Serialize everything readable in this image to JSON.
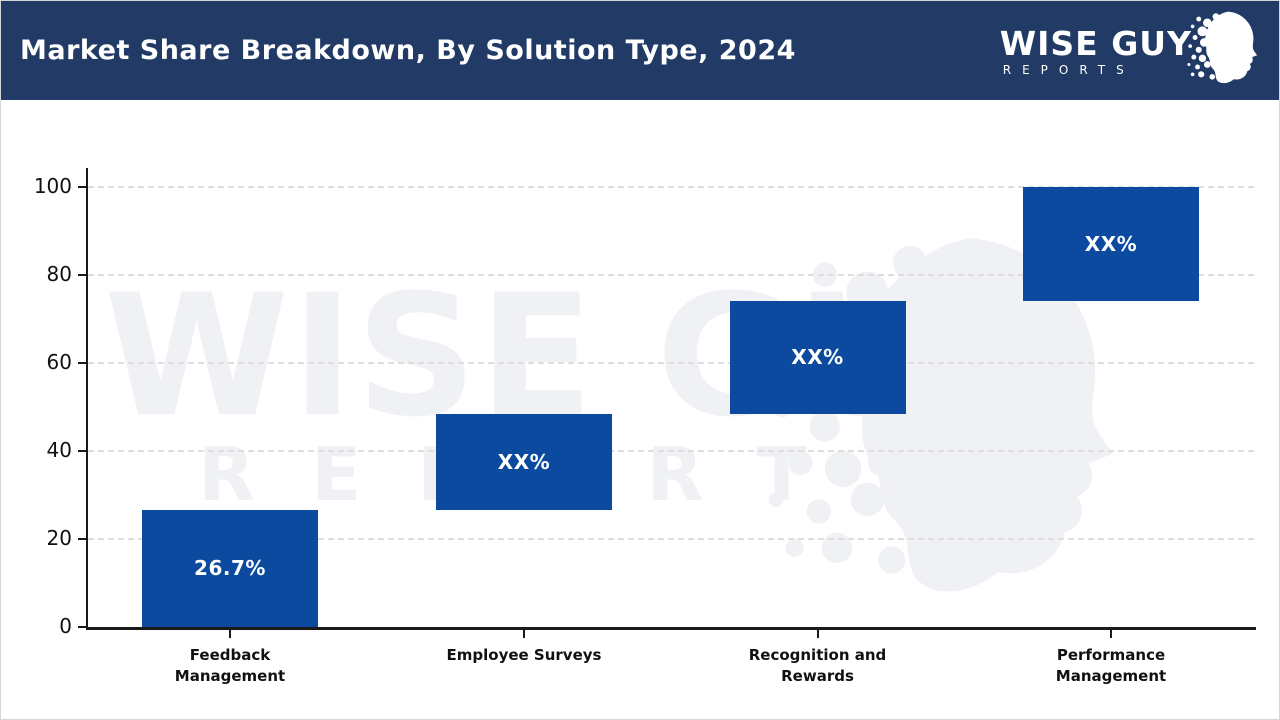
{
  "header": {
    "title": "Market Share Breakdown, By Solution Type, 2024",
    "logo": {
      "brand_line1": "WISE GUY",
      "brand_line2": "REPORTS"
    }
  },
  "watermark": {
    "line1": "WISE GU",
    "line2": "REPORTS"
  },
  "colors": {
    "header_bg": "#213a66",
    "bar": "#0b4a9f",
    "watermark": "#eff1f4",
    "grid": "#dedede",
    "axis": "#1a1a1a",
    "bar_label": "#ffffff"
  },
  "chart_data": {
    "type": "bar",
    "subtype": "waterfall-stacked-segments",
    "title": "Market Share Breakdown, By Solution Type, 2024",
    "xlabel": "",
    "ylabel": "",
    "ylim": [
      0,
      100
    ],
    "yticks": [
      0,
      20,
      40,
      60,
      80,
      100
    ],
    "grid": "horizontal-dashed",
    "legend": "none",
    "categories": [
      "Feedback Management",
      "Employee Surveys",
      "Recognition and Rewards",
      "Performance Management"
    ],
    "category_display": [
      "Feedback\nManagement",
      "Employee Surveys",
      "Recognition and\nRewards",
      "Performance\nManagement"
    ],
    "segments": [
      {
        "category": "Feedback Management",
        "label": "26.7%",
        "start": 0,
        "end": 26.7
      },
      {
        "category": "Employee Surveys",
        "label": "XX%",
        "start": 26.7,
        "end": 48.5
      },
      {
        "category": "Recognition and Rewards",
        "label": "XX%",
        "start": 48.5,
        "end": 74.2
      },
      {
        "category": "Performance Management",
        "label": "XX%",
        "start": 74.2,
        "end": 100
      }
    ]
  }
}
